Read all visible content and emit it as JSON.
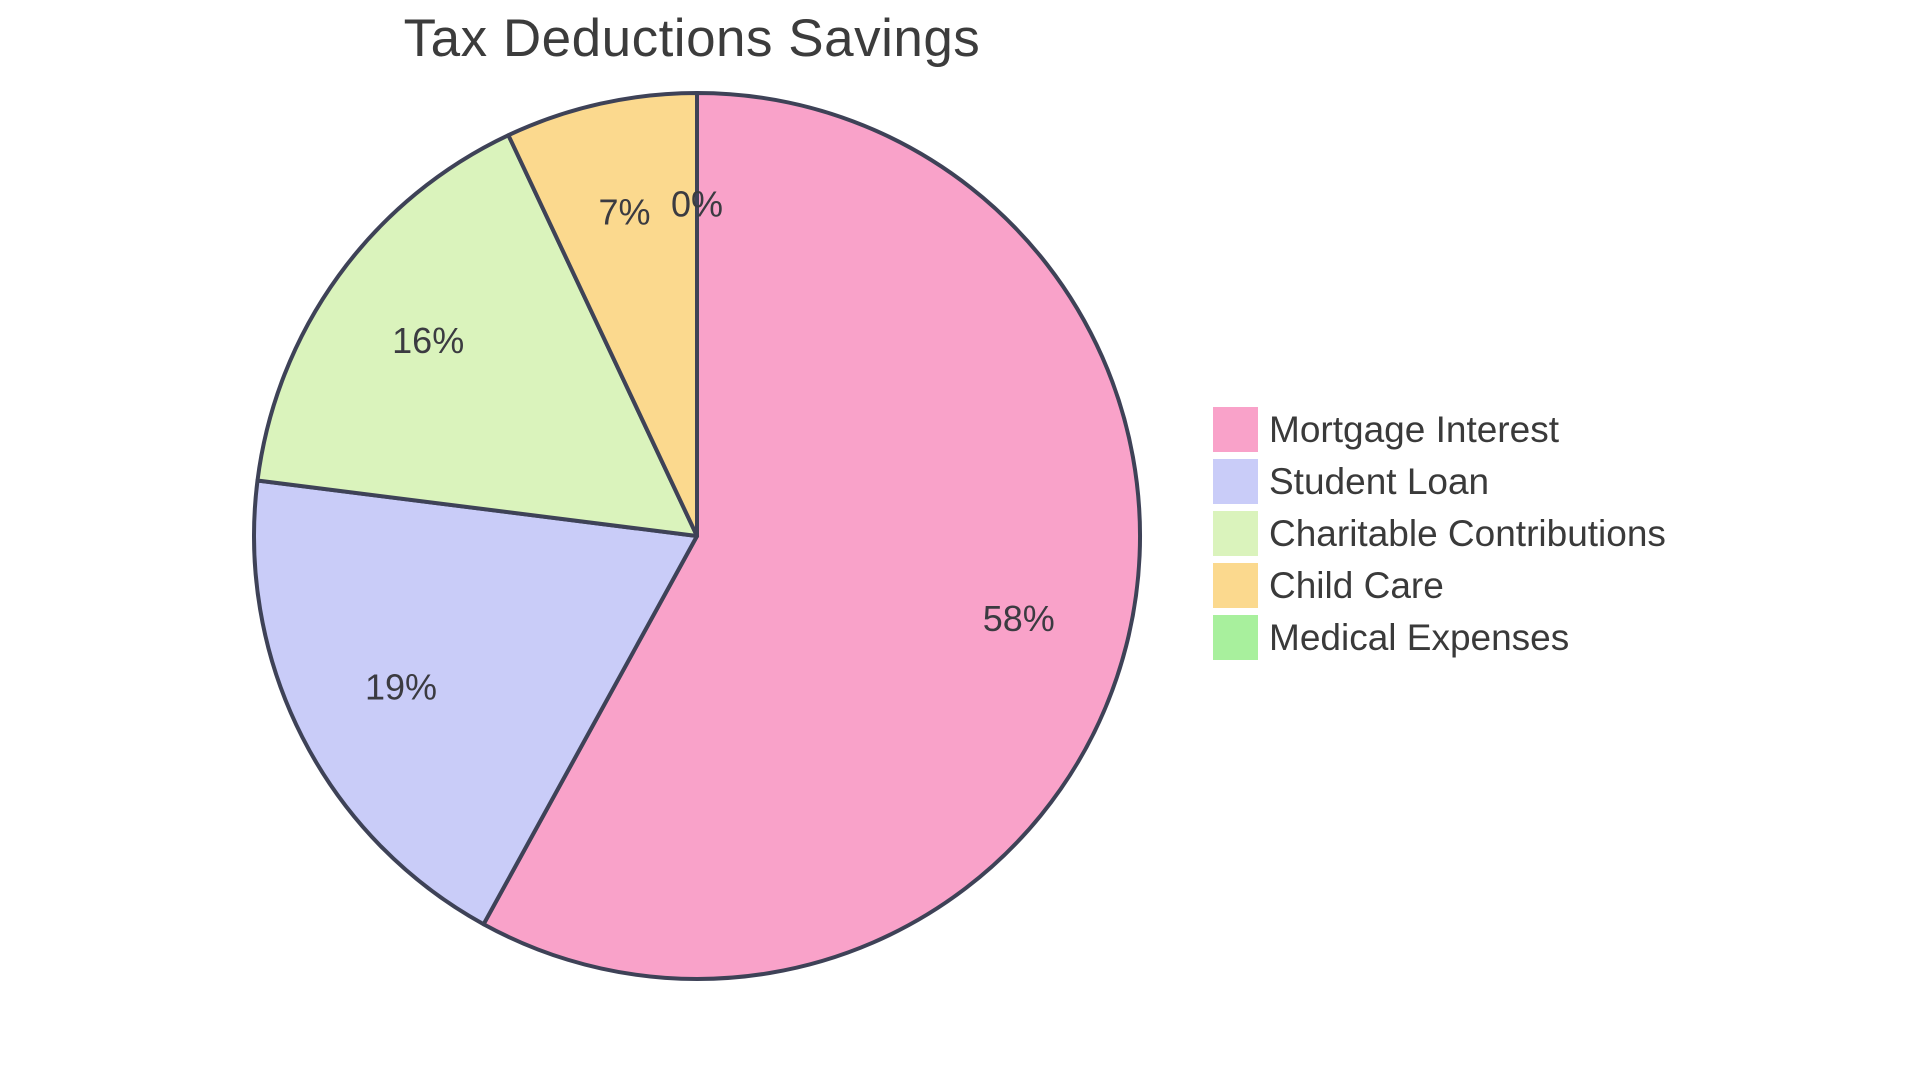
{
  "chart_data": {
    "type": "pie",
    "title": "Tax Deductions Savings",
    "categories": [
      "Mortgage Interest",
      "Student Loan",
      "Charitable Contributions",
      "Child Care",
      "Medical Expenses"
    ],
    "values": [
      58,
      19,
      16,
      7,
      0
    ],
    "percent_labels": [
      "58%",
      "19%",
      "16%",
      "7%",
      "0%"
    ],
    "colors": [
      "#F9A2C9",
      "#C9CCF8",
      "#DAF3BC",
      "#FBD98E",
      "#A8F09D"
    ],
    "stroke_color": "#3E4257",
    "text_color": "#3B3B41",
    "title_color": "#3C3C3C",
    "legend_position": "right",
    "start_angle_deg": 0,
    "direction": "clockwise"
  }
}
